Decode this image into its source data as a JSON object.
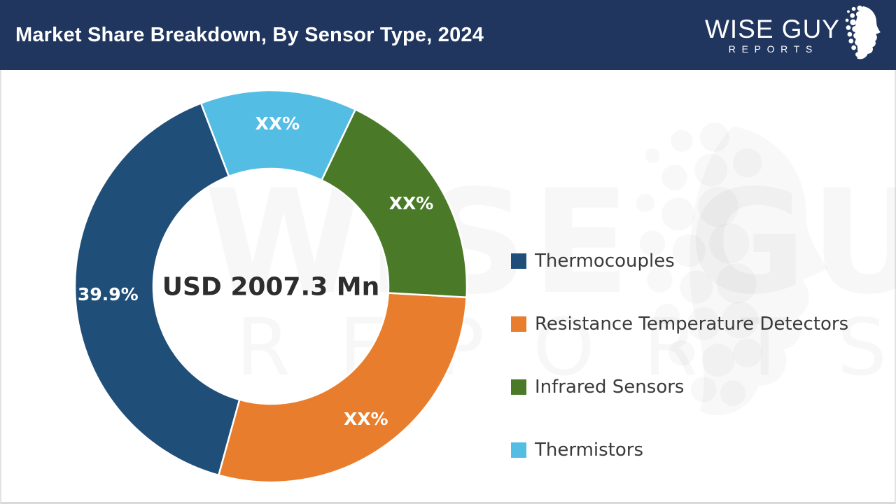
{
  "header": {
    "title": "Market Share Breakdown, By Sensor Type, 2024",
    "logo": {
      "line1": "WISE GUY",
      "line2": "REPORTS"
    }
  },
  "watermark": {
    "line1": "WISE GUY",
    "line2": "REPORTS"
  },
  "chart_data": {
    "type": "pie",
    "subtype": "donut",
    "title": "Market Share Breakdown, By Sensor Type, 2024",
    "center_label": "USD 2007.3 Mn",
    "start_angle_deg": 110.9,
    "direction": "counterclockwise",
    "inner_radius_ratio": 0.6,
    "legend_position": "right",
    "segments": [
      {
        "name": "Thermocouples",
        "value": 39.9,
        "display_label": "39.9%",
        "color": "#1f4e78"
      },
      {
        "name": "Resistance Temperature Detectors",
        "value": 28.4,
        "display_label": "XX%",
        "color": "#e87e2d"
      },
      {
        "name": "Infrared Sensors",
        "value": 18.8,
        "display_label": "XX%",
        "color": "#4a7a28"
      },
      {
        "name": "Thermistors",
        "value": 12.9,
        "display_label": "XX%",
        "color": "#54bde4"
      }
    ]
  },
  "colors": {
    "header_bg": "#20365f",
    "center_label_text": "#2d2d2d",
    "legend_text": "#3a3a3a",
    "border_line": "#d9d9d9",
    "label_text": "#ffffff"
  }
}
